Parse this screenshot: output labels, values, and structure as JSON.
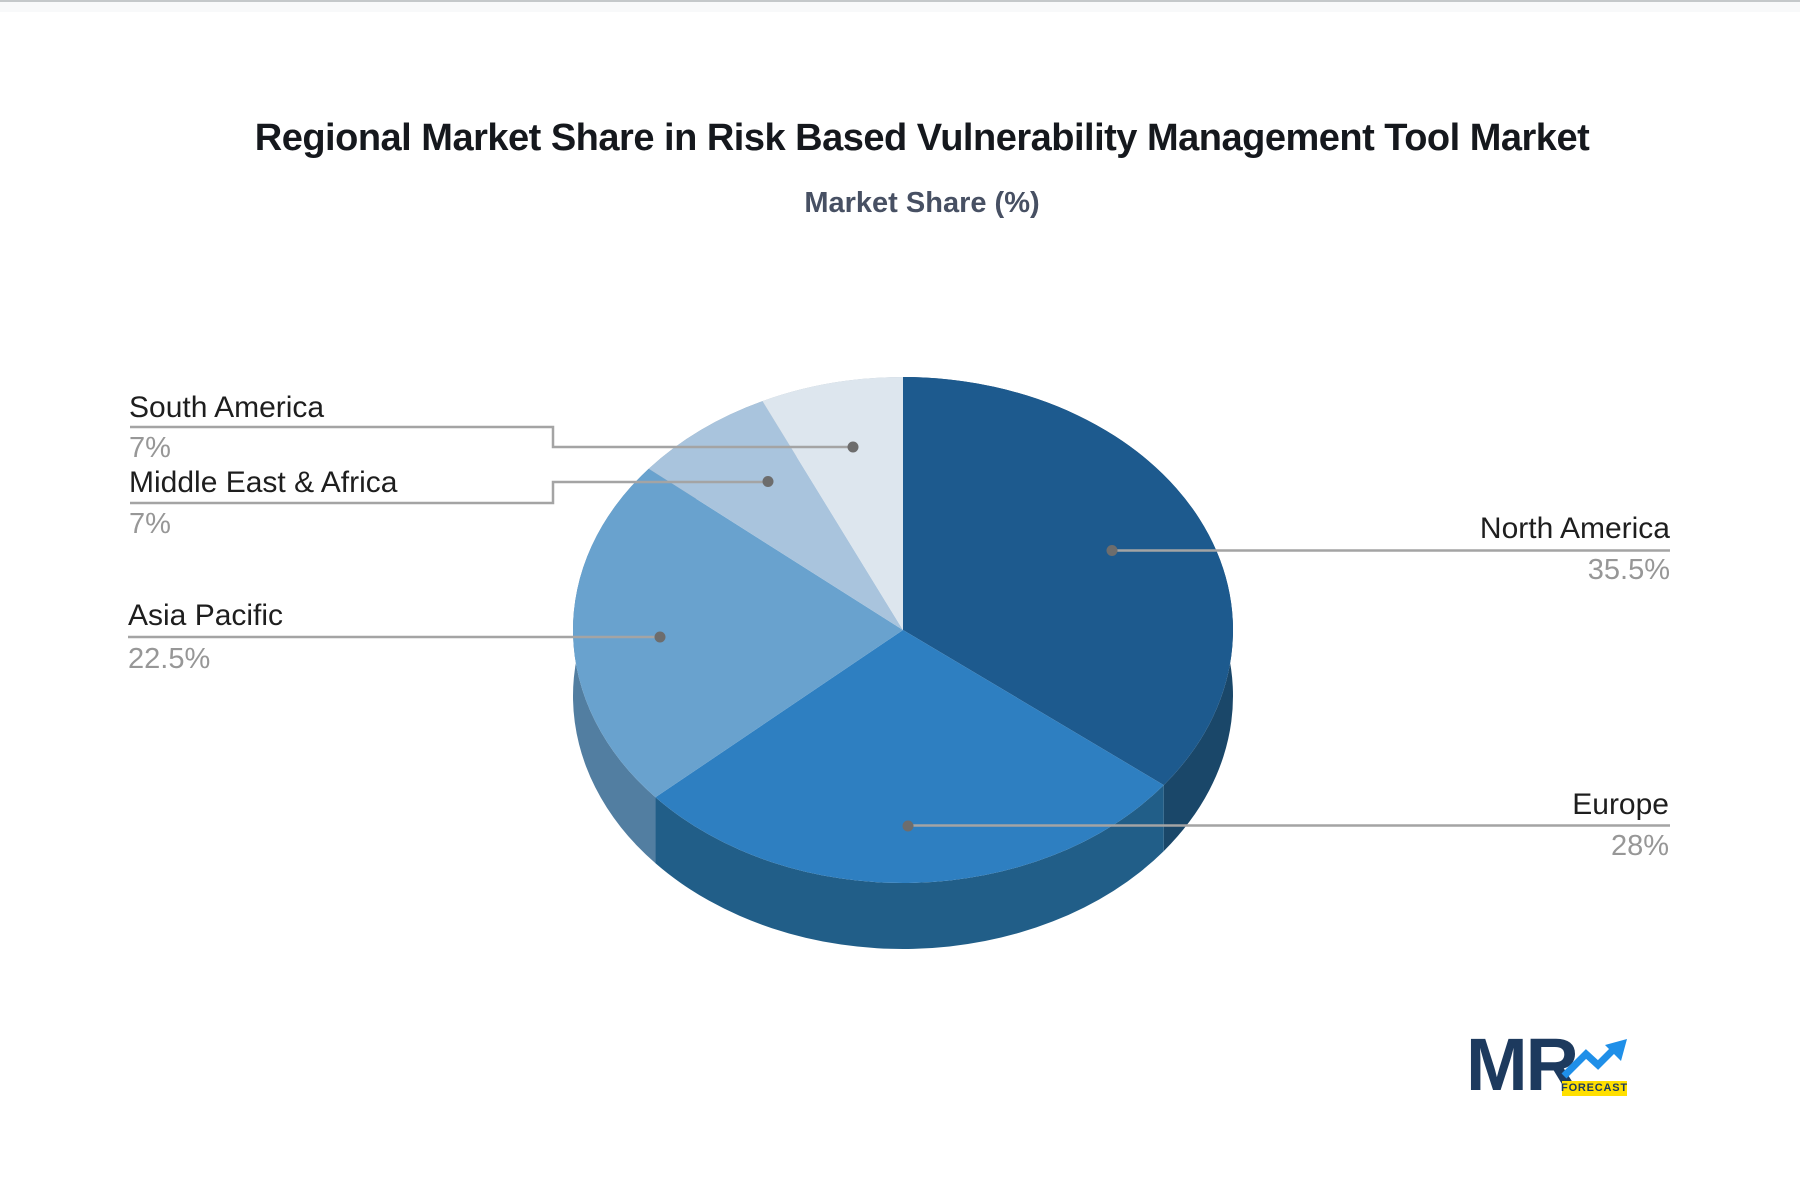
{
  "header": {
    "title": "Regional Market Share in Risk Based Vulnerability Management Tool Market",
    "subtitle": "Market Share (%)"
  },
  "chart_data": {
    "type": "pie",
    "title": "Regional Market Share in Risk Based Vulnerability Management Tool Market",
    "subtitle": "Market Share (%)",
    "unit": "%",
    "style": "3d-pie",
    "start_angle": "12-oclock",
    "direction": "clockwise",
    "legend_position": "none",
    "labels": "callout-lines-with-dots",
    "slices": [
      {
        "label": "North America",
        "value": 35.5,
        "display": "35.5%",
        "color": "#1d5a8e",
        "side_color": "#1a4769"
      },
      {
        "label": "Europe",
        "value": 28,
        "display": "28%",
        "color": "#2e7fc1",
        "side_color": "#215e88"
      },
      {
        "label": "Asia Pacific",
        "value": 22.5,
        "display": "22.5%",
        "color": "#69a2ce",
        "side_color": "#527ea1"
      },
      {
        "label": "Middle East & Africa",
        "value": 7,
        "display": "7%",
        "color": "#a9c4dd",
        "side_color": "#8299ad"
      },
      {
        "label": "South America",
        "value": 7,
        "display": "7%",
        "color": "#dde6ee",
        "side_color": "#aeb9c2"
      }
    ],
    "callout_line_color": "#a4a4a4",
    "callout_dot_color": "#6d6d6d"
  },
  "logo": {
    "text": "MR",
    "badge": "FORECAST",
    "navy": "#1d3a5e",
    "arrow_blue": "#1f8fe8",
    "badge_yellow": "#ffdf00"
  }
}
